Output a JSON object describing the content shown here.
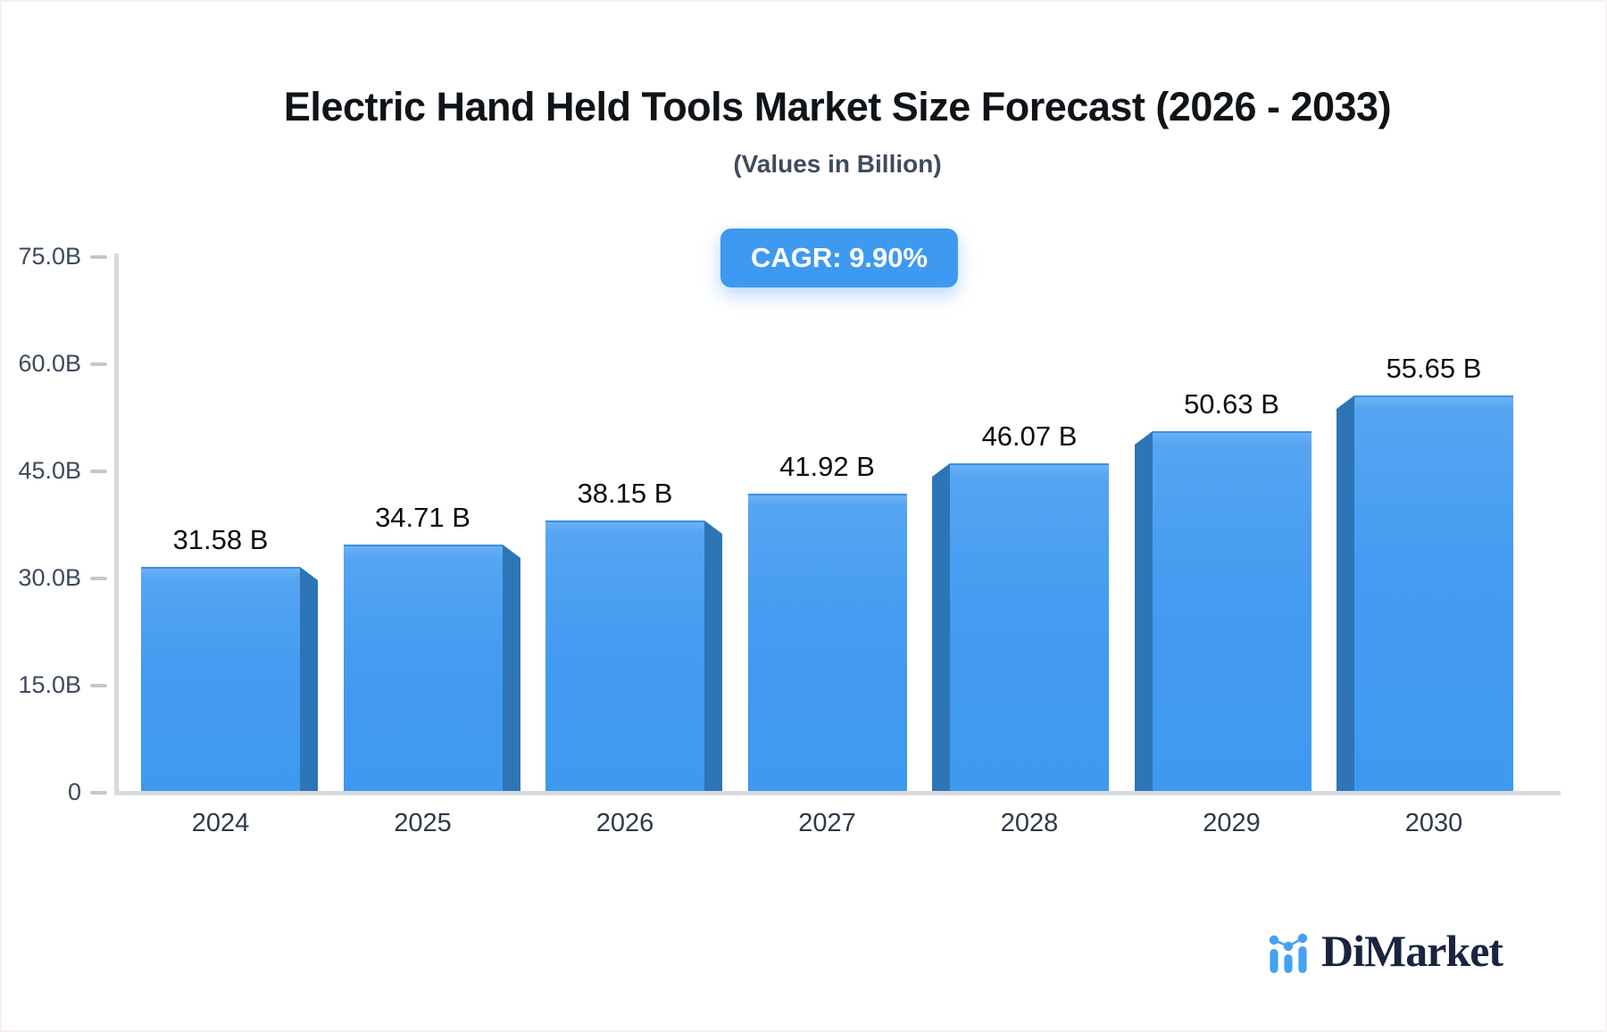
{
  "page": {
    "title": "Electric Hand Held Tools Market Size Forecast (2026 - 2033)",
    "subtitle": "(Values in Billion)",
    "cagr_badge": "CAGR: 9.90%"
  },
  "chart_data": {
    "type": "bar",
    "title": "Electric Hand Held Tools Market Size Forecast (2026 - 2033)",
    "subtitle": "(Values in Billion)",
    "annotation": "CAGR: 9.90%",
    "categories": [
      "2024",
      "2025",
      "2026",
      "2027",
      "2028",
      "2029",
      "2030"
    ],
    "values": [
      31.58,
      34.71,
      38.15,
      41.92,
      46.07,
      50.63,
      55.65
    ],
    "value_labels": [
      "31.58 B",
      "34.71 B",
      "38.15 B",
      "41.92 B",
      "46.07 B",
      "50.63 B",
      "55.65 B"
    ],
    "xlabel": "",
    "ylabel": "",
    "ylim": [
      0,
      75
    ],
    "y_tick_labels": [
      "0",
      "15.0B",
      "30.0B",
      "45.0B",
      "60.0B",
      "75.0B"
    ],
    "y_tick_values": [
      0,
      15,
      30,
      45,
      60,
      75
    ],
    "grid": false,
    "legend": "none",
    "bar_style": "3d-perspective"
  },
  "colors": {
    "bar_face": "#3e9af0",
    "bar_face_light": "#6db2f5",
    "bar_side": "#2d75b7",
    "badge_bg": "#3e9af0",
    "badge_text": "#ffffff",
    "axis_line": "#d7dade",
    "tick_mark": "#c2c8d0",
    "tick_label": "#3c4a5e",
    "value_label": "#0a0d12",
    "logo_navy": "#1a2440",
    "logo_blue": "#46a1f2"
  },
  "brand": {
    "logo_text": "DiMarket"
  }
}
